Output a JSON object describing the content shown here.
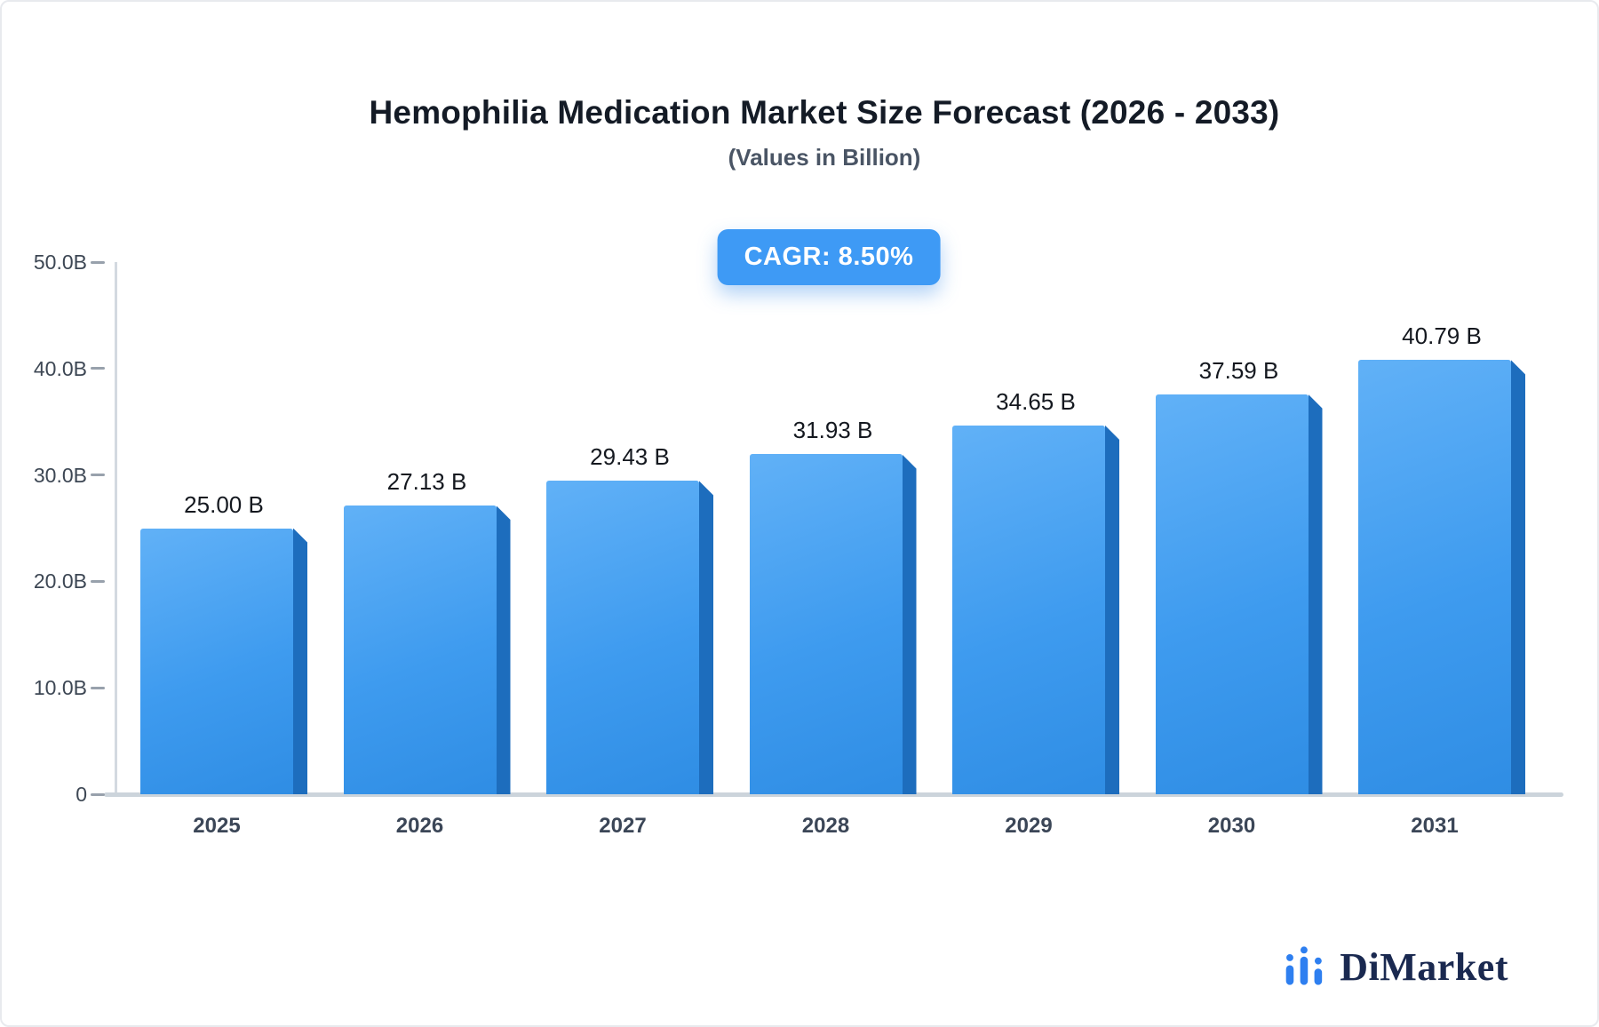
{
  "chart_data": {
    "type": "bar",
    "title": "Hemophilia Medication Market Size Forecast (2026 - 2033)",
    "subtitle": "(Values in Billion)",
    "badge": "CAGR: 8.50%",
    "categories": [
      "2025",
      "2026",
      "2027",
      "2028",
      "2029",
      "2030",
      "2031"
    ],
    "values": [
      25.0,
      27.13,
      29.43,
      31.93,
      34.65,
      37.59,
      40.79
    ],
    "value_labels": [
      "25.00 B",
      "27.13 B",
      "29.43 B",
      "31.93 B",
      "34.65 B",
      "37.59 B",
      "40.79 B"
    ],
    "y_ticks": [
      {
        "value": 0,
        "label": "0"
      },
      {
        "value": 10,
        "label": "10.0B"
      },
      {
        "value": 20,
        "label": "20.0B"
      },
      {
        "value": 30,
        "label": "30.0B"
      },
      {
        "value": 40,
        "label": "40.0B"
      },
      {
        "value": 50,
        "label": "50.0B"
      }
    ],
    "ylim": [
      0,
      50
    ],
    "grid": false,
    "legend": false,
    "colors": {
      "bar_top": "#61b1f7",
      "bar_bottom": "#2f8de4",
      "bar_side": "#1d6dbd",
      "badge_bg": "#3e9af5",
      "axis": "#ccd4db"
    }
  },
  "branding": {
    "logo_text": "DiMarket",
    "logo_color": "#2e7ff0"
  }
}
